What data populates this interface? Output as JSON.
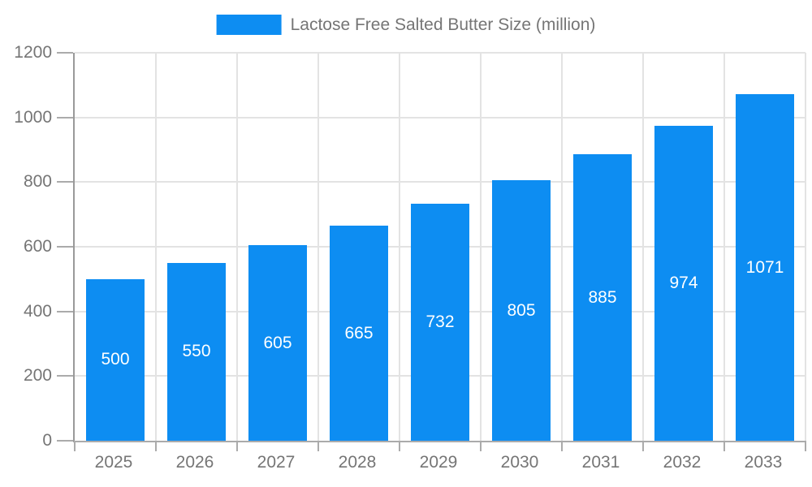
{
  "legend": {
    "label": "Lactose Free Salted Butter Size (million)"
  },
  "colors": {
    "bar": "#0d8df2",
    "axis_line": "#9a9a9a",
    "gridline": "#e3e3e3",
    "tick_text": "#757575",
    "value_label_text": "#ffffff",
    "background": "#ffffff"
  },
  "chart_data": {
    "type": "bar",
    "title": "Lactose Free Salted Butter Size (million)",
    "categories": [
      "2025",
      "2026",
      "2027",
      "2028",
      "2029",
      "2030",
      "2031",
      "2032",
      "2033"
    ],
    "values": [
      500,
      550,
      605,
      665,
      732,
      805,
      885,
      974,
      1071
    ],
    "value_labels": [
      "500",
      "550",
      "605",
      "665",
      "732",
      "805",
      "885",
      "974",
      "1071"
    ],
    "ytick_labels": [
      "0",
      "200",
      "400",
      "600",
      "800",
      "1000",
      "1200"
    ],
    "yticks": [
      0,
      200,
      400,
      600,
      800,
      1000,
      1200
    ],
    "ylim": [
      0,
      1200
    ],
    "xlabel": "",
    "ylabel": "",
    "grid": "on",
    "legend_position": "top-center",
    "value_label_position": "inside-center"
  }
}
